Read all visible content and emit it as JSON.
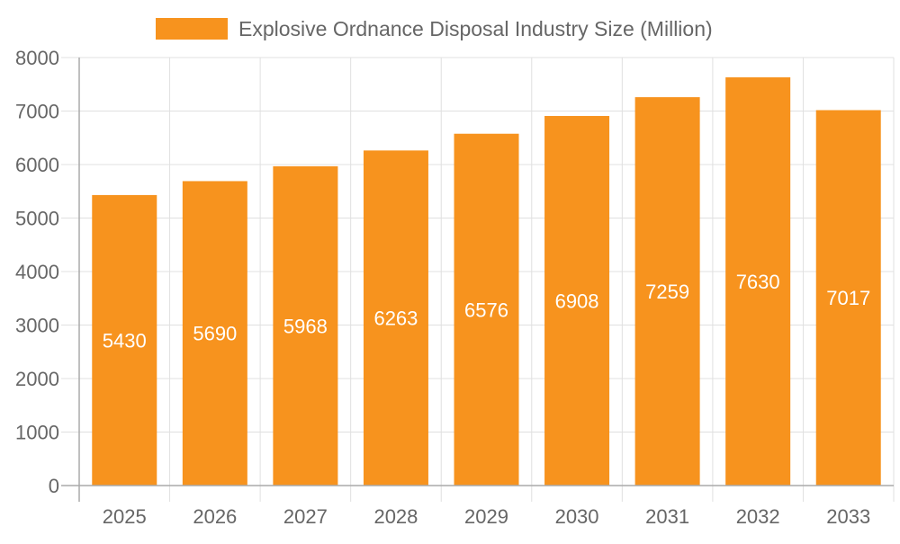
{
  "chart_data": {
    "type": "bar",
    "categories": [
      "2025",
      "2026",
      "2027",
      "2028",
      "2029",
      "2030",
      "2031",
      "2032",
      "2033"
    ],
    "series": [
      {
        "name": "Explosive Ordnance Disposal Industry Size (Million)",
        "values": [
          5430,
          5690,
          5968,
          6263,
          6576,
          6908,
          7259,
          7630,
          7017
        ]
      }
    ],
    "yticks": [
      "0",
      "1000",
      "2000",
      "3000",
      "4000",
      "5000",
      "6000",
      "7000",
      "8000"
    ],
    "ylim": [
      0,
      8000
    ],
    "grid": true,
    "legend": "top",
    "colors": {
      "bar": "#F7931E",
      "grid": "#e0e0e0",
      "text": "#666666",
      "label": "#ffffff"
    }
  }
}
